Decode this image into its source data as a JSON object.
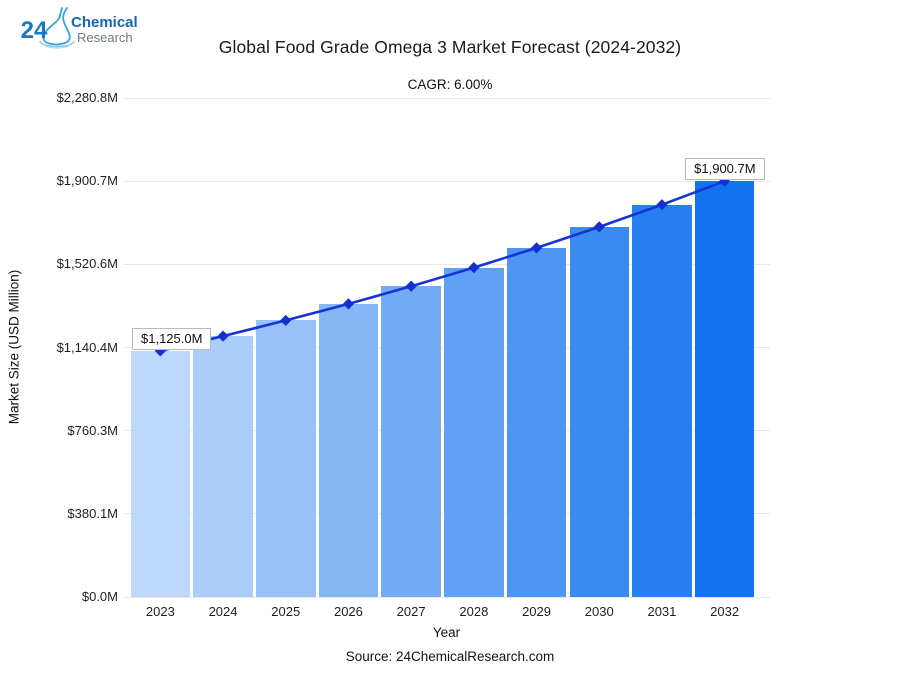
{
  "logo": {
    "number": "24",
    "line1": "Chemical",
    "line2": "Research"
  },
  "header": {
    "title": "Global Food Grade Omega 3 Market Forecast (2024-2032)",
    "subtitle": "CAGR: 6.00%"
  },
  "chart_data": {
    "type": "bar",
    "overlay": "line",
    "title": "Global Food Grade Omega 3 Market Forecast (2024-2032)",
    "subtitle": "CAGR: 6.00%",
    "categories": [
      "2023",
      "2024",
      "2025",
      "2026",
      "2027",
      "2028",
      "2029",
      "2030",
      "2031",
      "2032"
    ],
    "values": [
      1125.0,
      1192.5,
      1264.1,
      1339.9,
      1420.3,
      1505.5,
      1595.8,
      1691.6,
      1793.1,
      1900.7
    ],
    "xlabel": "Year",
    "ylabel": "Market Size (USD Million)",
    "ylim": [
      0,
      2280.8
    ],
    "ytick_labels": [
      "$0.0M",
      "$380.1M",
      "$760.3M",
      "$1,140.4M",
      "$1,520.6M",
      "$1,900.7M",
      "$2,280.8M"
    ],
    "grid": true,
    "legend": false,
    "bar_colors": [
      "#bed8fb",
      "#abcdfa",
      "#98c2f8",
      "#85b7f7",
      "#73acf5",
      "#60a1f4",
      "#4d96f3",
      "#3a8bf1",
      "#277ff0",
      "#1373ef"
    ],
    "line_color": "#1632d9",
    "marker_color": "#1430cf",
    "annotations": [
      {
        "year": "2023",
        "label": "$1,125.0M"
      },
      {
        "year": "2032",
        "label": "$1,900.7M"
      }
    ]
  },
  "footer": {
    "source": "Source: 24ChemicalResearch.com"
  }
}
